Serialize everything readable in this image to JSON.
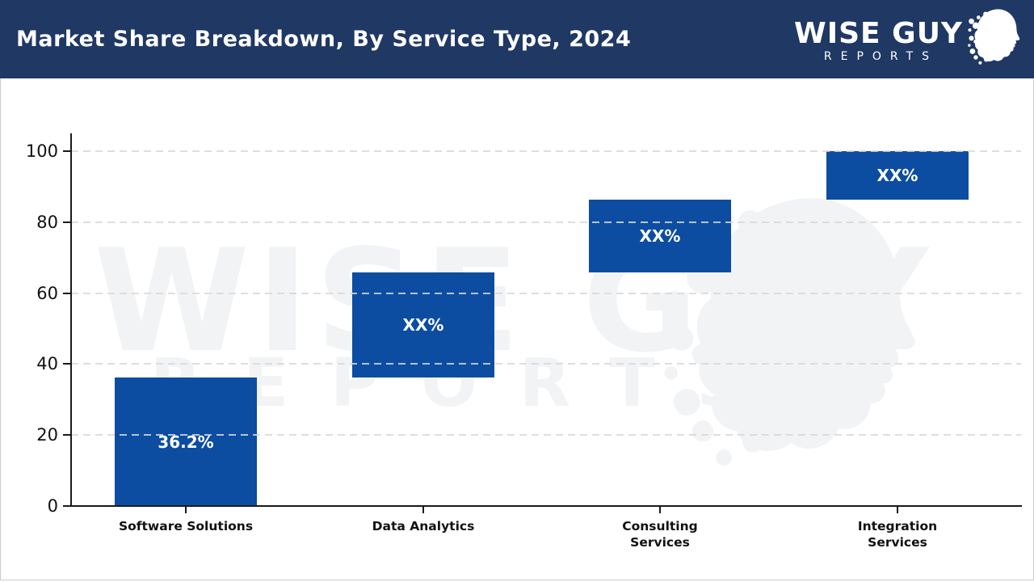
{
  "header": {
    "title": "Market Share Breakdown, By Service Type, 2024",
    "logo": {
      "line1": "WISE GUY",
      "line2": "REPORTS"
    }
  },
  "watermark": {
    "line1": "WISE GUY",
    "line2": "REPORTS"
  },
  "chart_data": {
    "type": "bar",
    "subtype": "waterfall",
    "title": "Market Share Breakdown, By Service Type, 2024",
    "categories": [
      "Software Solutions",
      "Data Analytics",
      "Consulting Services",
      "Integration Services"
    ],
    "tick_labels": [
      "Software Solutions",
      "Data Analytics",
      "Consulting\nServices",
      "Integration\nServices"
    ],
    "segments": [
      {
        "start": 0,
        "end": 36.2,
        "size": 36.2,
        "label": "36.2%"
      },
      {
        "start": 36.2,
        "end": 65.8,
        "size": 29.6,
        "label": "XX%"
      },
      {
        "start": 65.8,
        "end": 86.4,
        "size": 20.6,
        "label": "XX%"
      },
      {
        "start": 86.4,
        "end": 100,
        "size": 13.6,
        "label": "XX%"
      }
    ],
    "xlabel": "",
    "ylabel": "",
    "ylim": [
      0,
      100
    ],
    "yticks": [
      0,
      20,
      40,
      60,
      80,
      100
    ],
    "grid": "horizontal dashed, drawn over bars",
    "legend": "none",
    "colors": {
      "bar": "#0c4da2",
      "bar_label": "#ffffff",
      "header_bg": "#1f3864",
      "axis": "#1a1a1a",
      "gridline": "#d8d8d8",
      "watermark": "#f2f3f5"
    }
  }
}
